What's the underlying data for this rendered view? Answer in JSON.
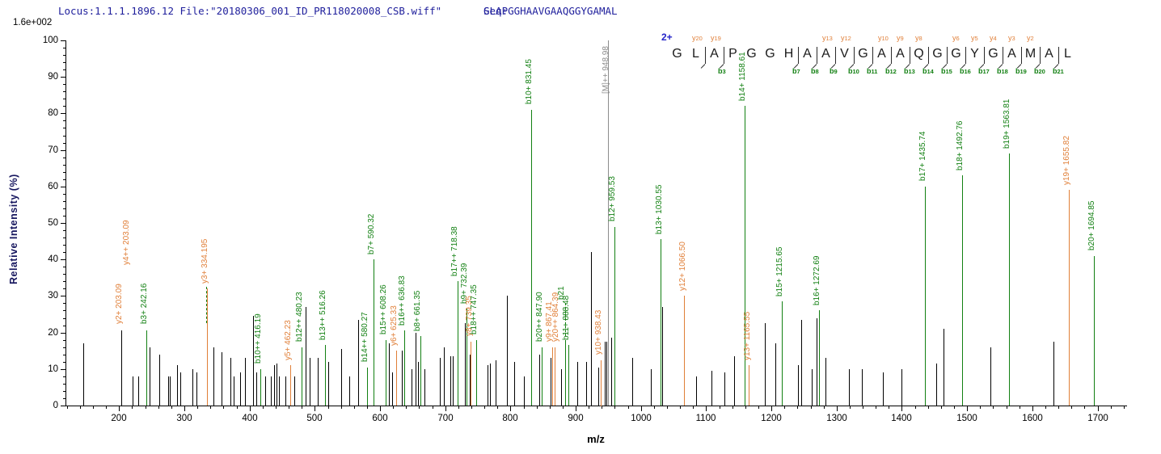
{
  "header": {
    "locus_file": "Locus:1.1.1.1896.12 File:\"20180306_001_ID_PR118020008_CSB.wiff\"",
    "seq_label": "Seq: ",
    "sequence": "GLAPGGHAAVGAAQGGYGAMAL"
  },
  "chart_data": {
    "type": "bar",
    "subtype": "ms2-fragment-stick-spectrum",
    "title": "",
    "xlabel": "m/z",
    "ylabel": "Relative  Intensity (%)",
    "max_intensity_label": "1.6e+002",
    "xlim": [
      119,
      1744
    ],
    "ylim": [
      0,
      100
    ],
    "x_ticks": {
      "major_start": 200,
      "major_end": 1700,
      "major_step": 100,
      "minor_step": 20
    },
    "y_ticks": {
      "major_step": 10,
      "minor_step": 2
    },
    "grid": false,
    "colors": {
      "b_ion": "#128012",
      "y_ion": "#e07f38",
      "precursor": "#8c8c8c",
      "peak": "#000000",
      "header_text": "#1f1f9c",
      "charge": "#2424c8"
    },
    "precursor": {
      "charge_label": "2+",
      "label": "[M]++ 948.98",
      "mz": 948.98,
      "intensity": 100
    },
    "peptide": {
      "residues": "GLAPGGHAAVGAAQGGYGAMAL",
      "cleavages": [
        {
          "after": 2,
          "y": "y20"
        },
        {
          "after": 3,
          "y": "y19",
          "b": "b3"
        },
        {
          "after": 7,
          "b": "b7"
        },
        {
          "after": 8,
          "b": "b8"
        },
        {
          "after": 9,
          "y": "y13",
          "b": "b9"
        },
        {
          "after": 10,
          "y": "y12",
          "b": "b10"
        },
        {
          "after": 11,
          "b": "b11"
        },
        {
          "after": 12,
          "y": "y10",
          "b": "b12"
        },
        {
          "after": 13,
          "y": "y9",
          "b": "b13"
        },
        {
          "after": 14,
          "y": "y8",
          "b": "b14"
        },
        {
          "after": 15,
          "b": "b15"
        },
        {
          "after": 16,
          "y": "y6",
          "b": "b16"
        },
        {
          "after": 17,
          "y": "y5",
          "b": "b17"
        },
        {
          "after": 18,
          "y": "y4",
          "b": "b18"
        },
        {
          "after": 19,
          "y": "y3",
          "b": "b19"
        },
        {
          "after": 20,
          "y": "y2",
          "b": "b20"
        },
        {
          "after": 21,
          "b": "b21"
        }
      ]
    },
    "peaks": [
      {
        "t": "k",
        "mz": 145,
        "i": 17
      },
      {
        "t": "k",
        "mz": 203.09,
        "i": 20.5
      },
      {
        "t": "k",
        "mz": 221,
        "i": 8
      },
      {
        "t": "k",
        "mz": 229,
        "i": 8
      },
      {
        "t": "b",
        "mz": 242.16,
        "i": 20.5
      },
      {
        "t": "k",
        "mz": 247,
        "i": 16
      },
      {
        "t": "k",
        "mz": 262,
        "i": 14
      },
      {
        "t": "k",
        "mz": 275,
        "i": 8
      },
      {
        "t": "k",
        "mz": 278,
        "i": 8
      },
      {
        "t": "k",
        "mz": 289,
        "i": 11
      },
      {
        "t": "k",
        "mz": 294,
        "i": 9
      },
      {
        "t": "k",
        "mz": 312,
        "i": 10
      },
      {
        "t": "k",
        "mz": 318,
        "i": 9
      },
      {
        "t": "y",
        "mz": 334.19,
        "i": 32
      },
      {
        "t": "b",
        "mz": 333.3,
        "i": 32.5,
        "i0": 22.5,
        "d": true
      },
      {
        "t": "k",
        "mz": 345,
        "i": 16
      },
      {
        "t": "k",
        "mz": 357,
        "i": 14.5
      },
      {
        "t": "k",
        "mz": 371,
        "i": 13
      },
      {
        "t": "k",
        "mz": 375,
        "i": 8
      },
      {
        "t": "k",
        "mz": 385,
        "i": 9
      },
      {
        "t": "k",
        "mz": 393,
        "i": 13
      },
      {
        "t": "k",
        "mz": 405,
        "i": 24.5
      },
      {
        "t": "k",
        "mz": 410,
        "i": 9
      },
      {
        "t": "b",
        "mz": 416.19,
        "i": 10
      },
      {
        "t": "k",
        "mz": 424,
        "i": 8
      },
      {
        "t": "k",
        "mz": 433,
        "i": 8
      },
      {
        "t": "k",
        "mz": 438,
        "i": 11
      },
      {
        "t": "k",
        "mz": 441,
        "i": 11.5
      },
      {
        "t": "k",
        "mz": 445,
        "i": 8
      },
      {
        "t": "k",
        "mz": 455,
        "i": 8
      },
      {
        "t": "y",
        "mz": 462.23,
        "i": 11
      },
      {
        "t": "k",
        "mz": 468,
        "i": 8
      },
      {
        "t": "b",
        "mz": 480.23,
        "i": 16
      },
      {
        "t": "k",
        "mz": 486,
        "i": 27
      },
      {
        "t": "k",
        "mz": 492,
        "i": 13
      },
      {
        "t": "k",
        "mz": 504,
        "i": 13
      },
      {
        "t": "b",
        "mz": 516.26,
        "i": 16.5
      },
      {
        "t": "k",
        "mz": 520,
        "i": 12
      },
      {
        "t": "k",
        "mz": 540,
        "i": 15.5
      },
      {
        "t": "k",
        "mz": 553,
        "i": 8
      },
      {
        "t": "k",
        "mz": 566,
        "i": 23.5
      },
      {
        "t": "b",
        "mz": 580.27,
        "i": 10.5
      },
      {
        "t": "b",
        "mz": 590.32,
        "i": 40
      },
      {
        "t": "b",
        "mz": 608.26,
        "i": 18
      },
      {
        "t": "k",
        "mz": 614,
        "i": 17
      },
      {
        "t": "k",
        "mz": 619,
        "i": 9
      },
      {
        "t": "k",
        "mz": 625,
        "i": 14
      },
      {
        "t": "y",
        "mz": 625.33,
        "i": 15
      },
      {
        "t": "k",
        "mz": 634,
        "i": 15
      },
      {
        "t": "b",
        "mz": 636.83,
        "i": 20.5
      },
      {
        "t": "k",
        "mz": 648,
        "i": 10
      },
      {
        "t": "k",
        "mz": 654,
        "i": 20
      },
      {
        "t": "k",
        "mz": 658,
        "i": 12
      },
      {
        "t": "b",
        "mz": 661.35,
        "i": 19
      },
      {
        "t": "k",
        "mz": 668,
        "i": 10
      },
      {
        "t": "k",
        "mz": 692,
        "i": 13
      },
      {
        "t": "k",
        "mz": 698,
        "i": 16
      },
      {
        "t": "k",
        "mz": 708,
        "i": 13.5
      },
      {
        "t": "k",
        "mz": 711,
        "i": 13.5
      },
      {
        "t": "b",
        "mz": 718.38,
        "i": 34
      },
      {
        "t": "k",
        "mz": 730,
        "i": 22.5
      },
      {
        "t": "b",
        "mz": 732.39,
        "i": 26.5
      },
      {
        "t": "k",
        "mz": 737,
        "i": 14
      },
      {
        "t": "y",
        "mz": 739.35,
        "i": 17.5
      },
      {
        "t": "b",
        "mz": 747.35,
        "i": 18
      },
      {
        "t": "k",
        "mz": 765,
        "i": 11
      },
      {
        "t": "k",
        "mz": 768,
        "i": 11.5
      },
      {
        "t": "k",
        "mz": 777,
        "i": 12.5
      },
      {
        "t": "k",
        "mz": 795,
        "i": 30
      },
      {
        "t": "k",
        "mz": 806,
        "i": 12
      },
      {
        "t": "k",
        "mz": 820,
        "i": 8
      },
      {
        "t": "b",
        "mz": 831.45,
        "i": 81
      },
      {
        "t": "k",
        "mz": 844,
        "i": 14
      },
      {
        "t": "b",
        "mz": 847.9,
        "i": 16
      },
      {
        "t": "k",
        "mz": 861,
        "i": 13
      },
      {
        "t": "y",
        "mz": 864.39,
        "i": 16
      },
      {
        "t": "y",
        "mz": 867.41,
        "i": 16
      },
      {
        "t": "k",
        "mz": 878,
        "i": 10
      },
      {
        "t": "b",
        "mz": 883.94,
        "i": 18
      },
      {
        "t": "b",
        "mz": 883.94,
        "i": 28,
        "i0": 19,
        "d": true
      },
      {
        "t": "b",
        "mz": 888.48,
        "i": 16.5
      },
      {
        "t": "k",
        "mz": 902,
        "i": 12
      },
      {
        "t": "k",
        "mz": 916,
        "i": 12
      },
      {
        "t": "k",
        "mz": 924,
        "i": 42
      },
      {
        "t": "k",
        "mz": 934,
        "i": 10.5
      },
      {
        "t": "y",
        "mz": 938.43,
        "i": 12.5
      },
      {
        "t": "k",
        "mz": 944,
        "i": 17.5
      },
      {
        "t": "k",
        "mz": 947,
        "i": 17.5
      },
      {
        "t": "p",
        "mz": 948.98,
        "i": 100
      },
      {
        "t": "k",
        "mz": 955,
        "i": 18.5
      },
      {
        "t": "b",
        "mz": 959.53,
        "i": 49
      },
      {
        "t": "k",
        "mz": 987,
        "i": 13
      },
      {
        "t": "k",
        "mz": 1015,
        "i": 10
      },
      {
        "t": "b",
        "mz": 1030.55,
        "i": 45.5
      },
      {
        "t": "k",
        "mz": 1033,
        "i": 27
      },
      {
        "t": "y",
        "mz": 1066.5,
        "i": 30
      },
      {
        "t": "k",
        "mz": 1085,
        "i": 8
      },
      {
        "t": "k",
        "mz": 1108,
        "i": 9.5
      },
      {
        "t": "k",
        "mz": 1128,
        "i": 9
      },
      {
        "t": "k",
        "mz": 1143,
        "i": 13.5
      },
      {
        "t": "b",
        "mz": 1158.61,
        "i": 82
      },
      {
        "t": "y",
        "mz": 1165.55,
        "i": 11
      },
      {
        "t": "k",
        "mz": 1190,
        "i": 22.5
      },
      {
        "t": "k",
        "mz": 1206,
        "i": 17
      },
      {
        "t": "b",
        "mz": 1215.65,
        "i": 28.5
      },
      {
        "t": "k",
        "mz": 1241,
        "i": 11
      },
      {
        "t": "k",
        "mz": 1246,
        "i": 23.5
      },
      {
        "t": "k",
        "mz": 1262,
        "i": 10
      },
      {
        "t": "k",
        "mz": 1269,
        "i": 24
      },
      {
        "t": "b",
        "mz": 1272.69,
        "i": 26
      },
      {
        "t": "k",
        "mz": 1283,
        "i": 13
      },
      {
        "t": "k",
        "mz": 1319,
        "i": 10
      },
      {
        "t": "k",
        "mz": 1339,
        "i": 10
      },
      {
        "t": "k",
        "mz": 1371,
        "i": 9
      },
      {
        "t": "k",
        "mz": 1399,
        "i": 10
      },
      {
        "t": "b",
        "mz": 1435.74,
        "i": 60
      },
      {
        "t": "k",
        "mz": 1453,
        "i": 11.5
      },
      {
        "t": "k",
        "mz": 1464,
        "i": 21
      },
      {
        "t": "b",
        "mz": 1492.76,
        "i": 63
      },
      {
        "t": "k",
        "mz": 1536,
        "i": 16
      },
      {
        "t": "b",
        "mz": 1563.81,
        "i": 69
      },
      {
        "t": "k",
        "mz": 1633,
        "i": 17.5
      },
      {
        "t": "y",
        "mz": 1655.82,
        "i": 59
      },
      {
        "t": "b",
        "mz": 1694.85,
        "i": 41
      }
    ],
    "peak_labels": [
      {
        "text": "y2+ 203.09",
        "mz": 204,
        "bottom": 22,
        "t": "y"
      },
      {
        "text": "y4++ 203.09",
        "mz": 216,
        "bottom": 38,
        "t": "y"
      },
      {
        "text": "b3+ 242.16",
        "mz": 243.5,
        "bottom": 22,
        "t": "b"
      },
      {
        "text": "y3+ 334.195",
        "mz": 335.5,
        "bottom": 33,
        "t": "y"
      },
      {
        "text": "b10++ 416.19",
        "mz": 417.5,
        "bottom": 11,
        "t": "b"
      },
      {
        "text": "y5+ 462.23",
        "mz": 463.5,
        "bottom": 12,
        "t": "y"
      },
      {
        "text": "b12++ 480.23",
        "mz": 481.5,
        "bottom": 17,
        "t": "b"
      },
      {
        "text": "b13++ 516.26",
        "mz": 517.5,
        "bottom": 17.5,
        "t": "b"
      },
      {
        "text": "b14++ 580.27",
        "mz": 581.5,
        "bottom": 11.5,
        "t": "b"
      },
      {
        "text": "b7+ 590.32",
        "mz": 591.5,
        "bottom": 41,
        "t": "b"
      },
      {
        "text": "b15++ 608.26",
        "mz": 609.5,
        "bottom": 19,
        "t": "b"
      },
      {
        "text": "y6+ 625.33",
        "mz": 626.5,
        "bottom": 16,
        "t": "y"
      },
      {
        "text": "b16++ 636.83",
        "mz": 638,
        "bottom": 21.5,
        "t": "b"
      },
      {
        "text": "b8+ 661.35",
        "mz": 662.5,
        "bottom": 20,
        "t": "b"
      },
      {
        "text": "b17++ 718.38",
        "mz": 719.5,
        "bottom": 35,
        "t": "b"
      },
      {
        "text": "b9+ 732.39",
        "mz": 733.5,
        "bottom": 27.5,
        "t": "b"
      },
      {
        "text": "y8+ 739.35",
        "mz": 741,
        "bottom": 18.5,
        "t": "y"
      },
      {
        "text": "b18++ 747.35",
        "mz": 749,
        "bottom": 19,
        "t": "b"
      },
      {
        "text": "b10+ 831.45",
        "mz": 832.5,
        "bottom": 82,
        "t": "b"
      },
      {
        "text": "b20++ 847.90",
        "mz": 849,
        "bottom": 17,
        "t": "b"
      },
      {
        "text": "y9+ 867.41",
        "mz": 864,
        "bottom": 17,
        "t": "y"
      },
      {
        "text": "y20++ 864.39",
        "mz": 874,
        "bottom": 17,
        "t": "y"
      },
      {
        "text": "b21",
        "mz": 882,
        "bottom": 28.5,
        "t": "b"
      },
      {
        "text": "b11+ 888.48",
        "mz": 890,
        "bottom": 17.5,
        "t": "b"
      },
      {
        "text": "y10+ 938.43",
        "mz": 939.5,
        "bottom": 13.5,
        "t": "y"
      },
      {
        "text": "[M]++ 948.98",
        "mz": 950.5,
        "bottom": 85,
        "t": "p"
      },
      {
        "text": "b12+ 959.53",
        "mz": 961,
        "bottom": 50,
        "t": "b"
      },
      {
        "text": "b13+ 1030.55",
        "mz": 1032,
        "bottom": 46.5,
        "t": "b"
      },
      {
        "text": "y12+ 1066.50",
        "mz": 1068,
        "bottom": 31,
        "t": "y"
      },
      {
        "text": "b14+ 1158.61",
        "mz": 1160,
        "bottom": 83,
        "t": "b"
      },
      {
        "text": "y13+ 1165.55",
        "mz": 1168,
        "bottom": 12,
        "t": "y"
      },
      {
        "text": "b15+ 1215.65",
        "mz": 1217,
        "bottom": 29.5,
        "t": "b"
      },
      {
        "text": "b16+ 1272.69",
        "mz": 1274,
        "bottom": 27,
        "t": "b"
      },
      {
        "text": "b17+ 1435.74",
        "mz": 1437,
        "bottom": 61,
        "t": "b"
      },
      {
        "text": "b18+ 1492.76",
        "mz": 1494,
        "bottom": 64,
        "t": "b"
      },
      {
        "text": "b19+ 1563.81",
        "mz": 1565,
        "bottom": 70,
        "t": "b"
      },
      {
        "text": "y19+ 1655.82",
        "mz": 1657,
        "bottom": 60,
        "t": "y"
      },
      {
        "text": "b20+ 1694.85",
        "mz": 1696,
        "bottom": 42,
        "t": "b"
      }
    ]
  }
}
